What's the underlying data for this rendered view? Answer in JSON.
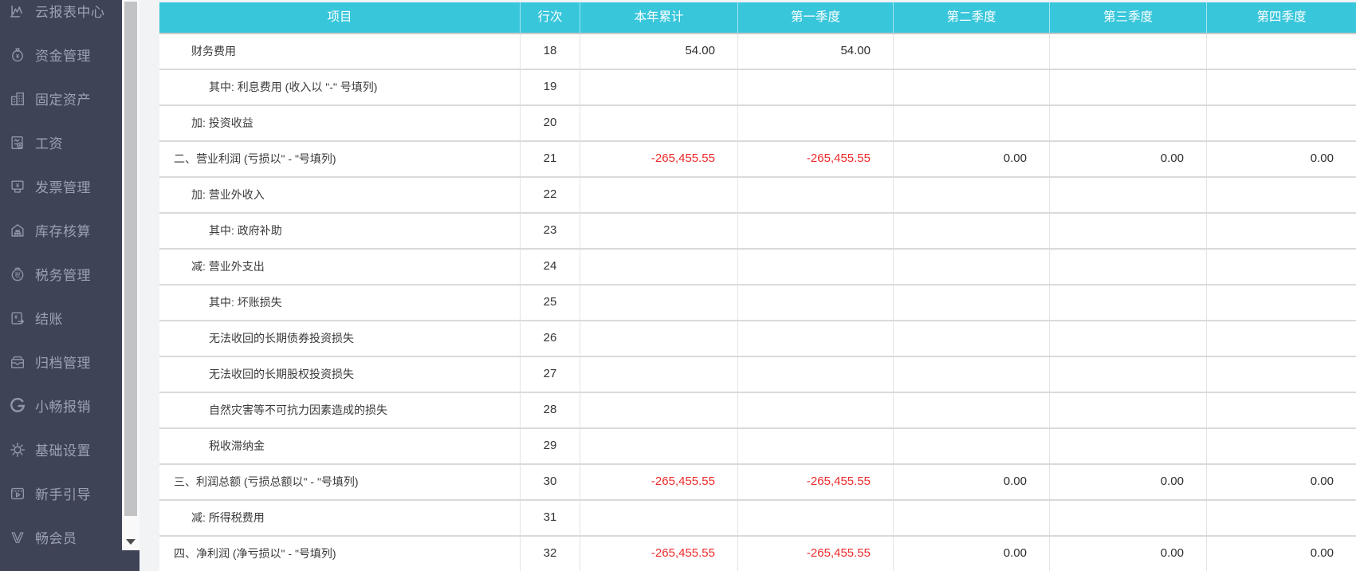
{
  "sidebar": {
    "items": [
      {
        "label": "云报表中心",
        "icon": "line-chart"
      },
      {
        "label": "资金管理",
        "icon": "money-bag"
      },
      {
        "label": "固定资产",
        "icon": "building"
      },
      {
        "label": "工资",
        "icon": "salary-doc"
      },
      {
        "label": "发票管理",
        "icon": "invoice"
      },
      {
        "label": "库存核算",
        "icon": "warehouse"
      },
      {
        "label": "税务管理",
        "icon": "tax-seal"
      },
      {
        "label": "结账",
        "icon": "closing-book"
      },
      {
        "label": "归档管理",
        "icon": "archive-box"
      },
      {
        "label": "小畅报销",
        "icon": "xiaochang-logo"
      },
      {
        "label": "基础设置",
        "icon": "gear"
      },
      {
        "label": "新手引导",
        "icon": "video-guide"
      },
      {
        "label": "畅会员",
        "icon": "vip-v"
      }
    ]
  },
  "table": {
    "columns": [
      "项目",
      "行次",
      "本年累计",
      "第一季度",
      "第二季度",
      "第三季度",
      "第四季度"
    ],
    "rows": [
      {
        "item": "财务费用",
        "indent": 1,
        "line": "18",
        "values": [
          "54.00",
          "54.00",
          "",
          "",
          ""
        ]
      },
      {
        "item": "其中: 利息费用 (收入以 \"-\" 号填列)",
        "indent": 2,
        "line": "19",
        "values": [
          "",
          "",
          "",
          "",
          ""
        ]
      },
      {
        "item": "加: 投资收益",
        "indent": 1,
        "line": "20",
        "values": [
          "",
          "",
          "",
          "",
          ""
        ]
      },
      {
        "item": "二、营业利润 (亏损以\" - \"号填列)",
        "indent": 0,
        "line": "21",
        "values": [
          "-265,455.55",
          "-265,455.55",
          "0.00",
          "0.00",
          "0.00"
        ]
      },
      {
        "item": "加: 营业外收入",
        "indent": 1,
        "line": "22",
        "values": [
          "",
          "",
          "",
          "",
          ""
        ]
      },
      {
        "item": "其中: 政府补助",
        "indent": 2,
        "line": "23",
        "values": [
          "",
          "",
          "",
          "",
          ""
        ]
      },
      {
        "item": "减: 营业外支出",
        "indent": 1,
        "line": "24",
        "values": [
          "",
          "",
          "",
          "",
          ""
        ]
      },
      {
        "item": "其中: 坏账损失",
        "indent": 2,
        "line": "25",
        "values": [
          "",
          "",
          "",
          "",
          ""
        ]
      },
      {
        "item": "无法收回的长期债券投资损失",
        "indent": 2,
        "line": "26",
        "values": [
          "",
          "",
          "",
          "",
          ""
        ]
      },
      {
        "item": "无法收回的长期股权投资损失",
        "indent": 2,
        "line": "27",
        "values": [
          "",
          "",
          "",
          "",
          ""
        ]
      },
      {
        "item": "自然灾害等不可抗力因素造成的损失",
        "indent": 2,
        "line": "28",
        "values": [
          "",
          "",
          "",
          "",
          ""
        ]
      },
      {
        "item": "税收滞纳金",
        "indent": 2,
        "line": "29",
        "values": [
          "",
          "",
          "",
          "",
          ""
        ]
      },
      {
        "item": "三、利润总额 (亏损总额以\" - \"号填列)",
        "indent": 0,
        "line": "30",
        "values": [
          "-265,455.55",
          "-265,455.55",
          "0.00",
          "0.00",
          "0.00"
        ]
      },
      {
        "item": "减: 所得税费用",
        "indent": 1,
        "line": "31",
        "values": [
          "",
          "",
          "",
          "",
          ""
        ]
      },
      {
        "item": "四、净利润 (净亏损以\" - \"号填列)",
        "indent": 0,
        "line": "32",
        "values": [
          "-265,455.55",
          "-265,455.55",
          "0.00",
          "0.00",
          "0.00"
        ]
      }
    ]
  },
  "colors": {
    "header_bg": "#38c6db",
    "sidebar_bg": "#3f4356",
    "negative_value": "#ee2b2b",
    "page_bg": "#f1f3f5",
    "scrollbar_thumb": "#c2c3c5"
  }
}
